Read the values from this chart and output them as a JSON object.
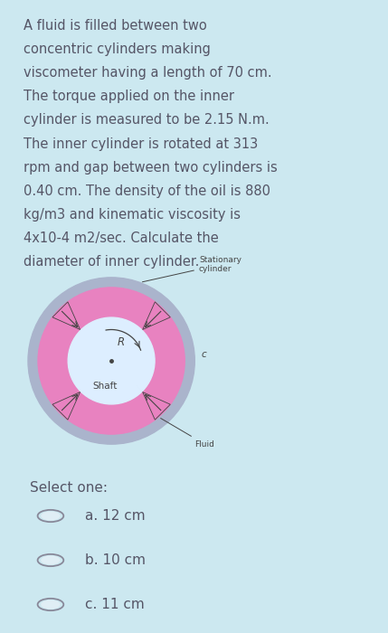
{
  "background_color": "#cce8f0",
  "card_color": "#cce8f0",
  "text_color": "#555566",
  "question_lines": [
    "A fluid is filled between two",
    "concentric cylinders making",
    "viscometer having a length of 70 cm.",
    "The torque applied on the inner",
    "cylinder is measured to be 2.15 N.m.",
    "The inner cylinder is rotated at 313",
    "rpm and gap between two cylinders is",
    "0.40 cm. The density of the oil is 880",
    "kg/m3 and kinematic viscosity is",
    "4x10-4 m2/sec. Calculate the",
    "diameter of inner cylinder."
  ],
  "diagram": {
    "outer_ring_color": "#aab4cc",
    "fluid_color": "#e882c0",
    "inner_circle_color": "#ddeeff",
    "arrow_color": "#444444",
    "label_stationary": "Stationary\ncylinder",
    "label_fluid": "Fluid",
    "label_shaft": "Shaft",
    "label_R": "R",
    "label_c": "c"
  },
  "select_one_label": "Select one:",
  "options": [
    "a. 12 cm",
    "b. 10 cm",
    "c. 11 cm"
  ],
  "font_size_question": 10.5,
  "font_size_options": 11,
  "font_size_select": 11
}
